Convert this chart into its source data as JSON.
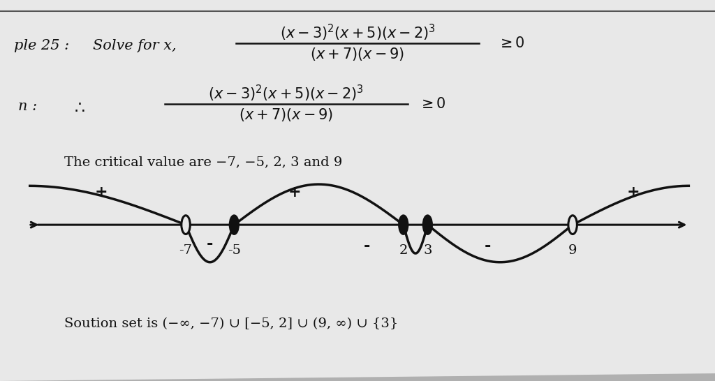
{
  "bg_color": "#b0b0b0",
  "page_color": "#e8e8e8",
  "text_color": "#111111",
  "line_color": "#111111",
  "curve_color": "#111111",
  "open_points": [
    -7,
    9
  ],
  "closed_points": [
    -5,
    2,
    3
  ],
  "signs": [
    "+",
    "-",
    "+",
    "-",
    "-",
    "+"
  ],
  "sign_positions_x": [
    -10.5,
    -6.0,
    -2.5,
    0.5,
    5.5,
    11.5
  ],
  "sign_positions_y": [
    0.62,
    -0.38,
    0.62,
    -0.42,
    -0.42,
    0.62
  ],
  "axis_xlim": [
    -13.5,
    14.0
  ],
  "axis_ylim": [
    -1.1,
    1.1
  ],
  "critical_text": "The critical value are −7, −5, 2, 3 and 9",
  "solution_text": "Soution set is (−∞, −7) ∪ [−5, 2] ∪ (9, ∞) ∪ {3}"
}
